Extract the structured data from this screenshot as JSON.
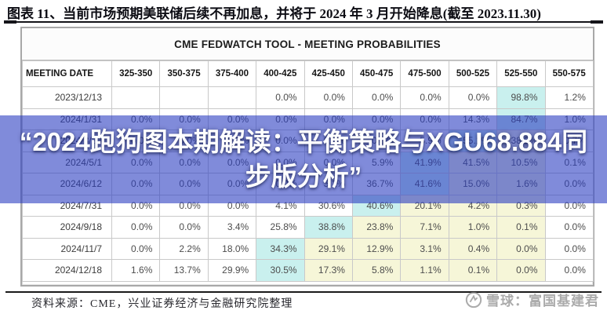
{
  "figure": {
    "title": "图表 11、当前市场预期美联储后续不再加息，并将于 2024 年 3 月开始降息(截至 2023.11.30)"
  },
  "table": {
    "title": "CME FEDWATCH TOOL - MEETING PROBABILITIES",
    "date_header": "MEETING DATE",
    "rate_headers": [
      "325-350",
      "350-375",
      "375-400",
      "400-425",
      "425-450",
      "450-475",
      "475-500",
      "500-525",
      "525-550",
      "550-575"
    ],
    "rows": [
      {
        "date": "2023/12/13",
        "values": [
          "",
          "",
          "",
          "0.0%",
          "0.0%",
          "0.0%",
          "0.0%",
          "0.0%",
          "98.8%",
          "1.2%"
        ],
        "cyan": 8,
        "yellow": []
      },
      {
        "date": "2024/1/31",
        "values": [
          "0.0%",
          "0.0%",
          "0.0%",
          "0.0%",
          "0.0%",
          "0.0%",
          "0.0%",
          "14.3%",
          "84.7%",
          "1.0%"
        ],
        "cyan": 8,
        "yellow": []
      },
      {
        "date": "2024/3/20",
        "values": [
          "0.0%",
          "0.0%",
          "0.0%",
          "0.0%",
          "0.0%",
          "0.0%",
          "5.9%",
          "55.1%",
          "38.2%",
          "0.7%"
        ],
        "cyan": 7,
        "yellow": [
          8
        ]
      },
      {
        "date": "2024/5/1",
        "values": [
          "0.0%",
          "0.0%",
          "0.0%",
          "0.0%",
          "0.0%",
          "5.9%",
          "41.9%",
          "41.5%",
          "10.5%",
          "0.1%"
        ],
        "cyan": 6,
        "yellow": [
          7,
          8
        ]
      },
      {
        "date": "2024/6/12",
        "values": [
          "0.0%",
          "0.0%",
          "0.0%",
          "0.0%",
          "5.1%",
          "36.7%",
          "41.6%",
          "15.0%",
          "1.6%",
          "0.0%"
        ],
        "cyan": 6,
        "yellow": [
          7,
          8
        ]
      },
      {
        "date": "2024/7/31",
        "values": [
          "0.0%",
          "0.0%",
          "0.0%",
          "4.1%",
          "30.6%",
          "40.6%",
          "20.1%",
          "4.2%",
          "0.3%",
          "0.0%"
        ],
        "cyan": 5,
        "yellow": [
          6,
          7,
          8
        ]
      },
      {
        "date": "2024/9/18",
        "values": [
          "0.0%",
          "0.0%",
          "3.4%",
          "25.8%",
          "38.8%",
          "23.8%",
          "7.1%",
          "1.0%",
          "0.1%",
          "0.0%"
        ],
        "cyan": 4,
        "yellow": [
          5,
          6,
          7,
          8
        ]
      },
      {
        "date": "2024/11/7",
        "values": [
          "0.0%",
          "2.2%",
          "18.0%",
          "34.3%",
          "29.1%",
          "12.9%",
          "3.1%",
          "0.4%",
          "0.0%",
          "0.0%"
        ],
        "cyan": 3,
        "yellow": [
          4,
          5,
          6,
          7,
          8
        ]
      },
      {
        "date": "2024/12/18",
        "values": [
          "1.6%",
          "13.7%",
          "29.9%",
          "30.5%",
          "17.3%",
          "5.8%",
          "1.1%",
          "0.1%",
          "0.0%",
          "0.0%"
        ],
        "cyan": 3,
        "yellow": [
          4,
          5,
          6,
          7,
          8
        ]
      }
    ]
  },
  "overlay": {
    "text": "“2024跑狗图本期解读：平衡策略与XGU68.884同步版分析”",
    "lines": [
      "“2024跑狗图本期解读：平衡策略与XGU68.884同",
      "步版分析”"
    ]
  },
  "source": "资料来源：CME，兴业证券经济与金融研究院整理",
  "watermark": {
    "site": "雪球",
    "text": "雪球：富国基建君"
  },
  "colors": {
    "highlight_max": "#c9f0ee",
    "highlight_right_band": "#f6f6d8",
    "overlay_blue": "#2b3ec1"
  }
}
